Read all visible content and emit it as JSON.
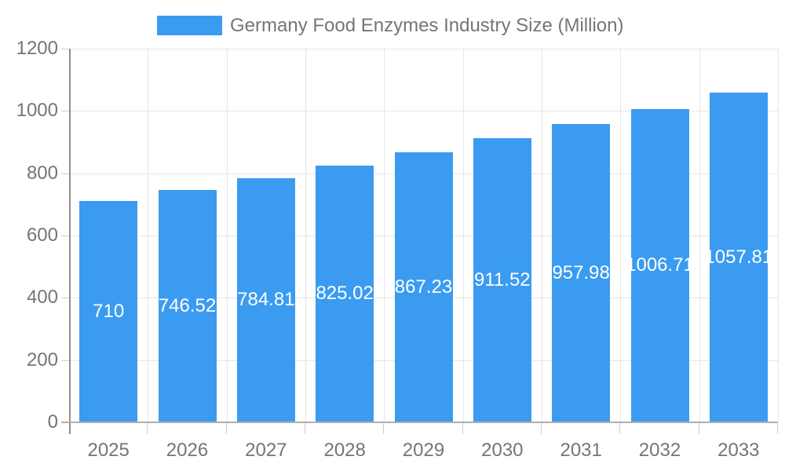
{
  "legend": {
    "label": "Germany Food Enzymes Industry Size (Million)",
    "position": "top"
  },
  "chart_data": {
    "type": "bar",
    "title": "Germany Food Enzymes Industry Size (Million)",
    "categories": [
      "2025",
      "2026",
      "2027",
      "2028",
      "2029",
      "2030",
      "2031",
      "2032",
      "2033"
    ],
    "series": [
      {
        "name": "Germany Food Enzymes Industry Size (Million)",
        "values": [
          710,
          746.52,
          784.81,
          825.02,
          867.23,
          911.52,
          957.98,
          1006.71,
          1057.81
        ],
        "labels": [
          "710",
          "746.52",
          "784.81",
          "825.02",
          "867.23",
          "911.52",
          "957.98",
          "1006.71",
          "1057.81"
        ]
      }
    ],
    "xlabel": "",
    "ylabel": "",
    "ylim": [
      0,
      1200
    ],
    "yticks": [
      0,
      200,
      400,
      600,
      800,
      1000,
      1200
    ],
    "grid": true,
    "legend_position": "top",
    "value_labels_inside_bars": true,
    "colors": {
      "bar": "#3B9BF0",
      "bar_label": "#FFFFFF",
      "axis_text": "#757575",
      "gridline": "#E6E6E6",
      "y_axis_line": "#8F8F8F",
      "x_axis_line": "#B0B0B0",
      "tick_mark": "#CFCFCF",
      "background": "#FFFFFF"
    }
  }
}
